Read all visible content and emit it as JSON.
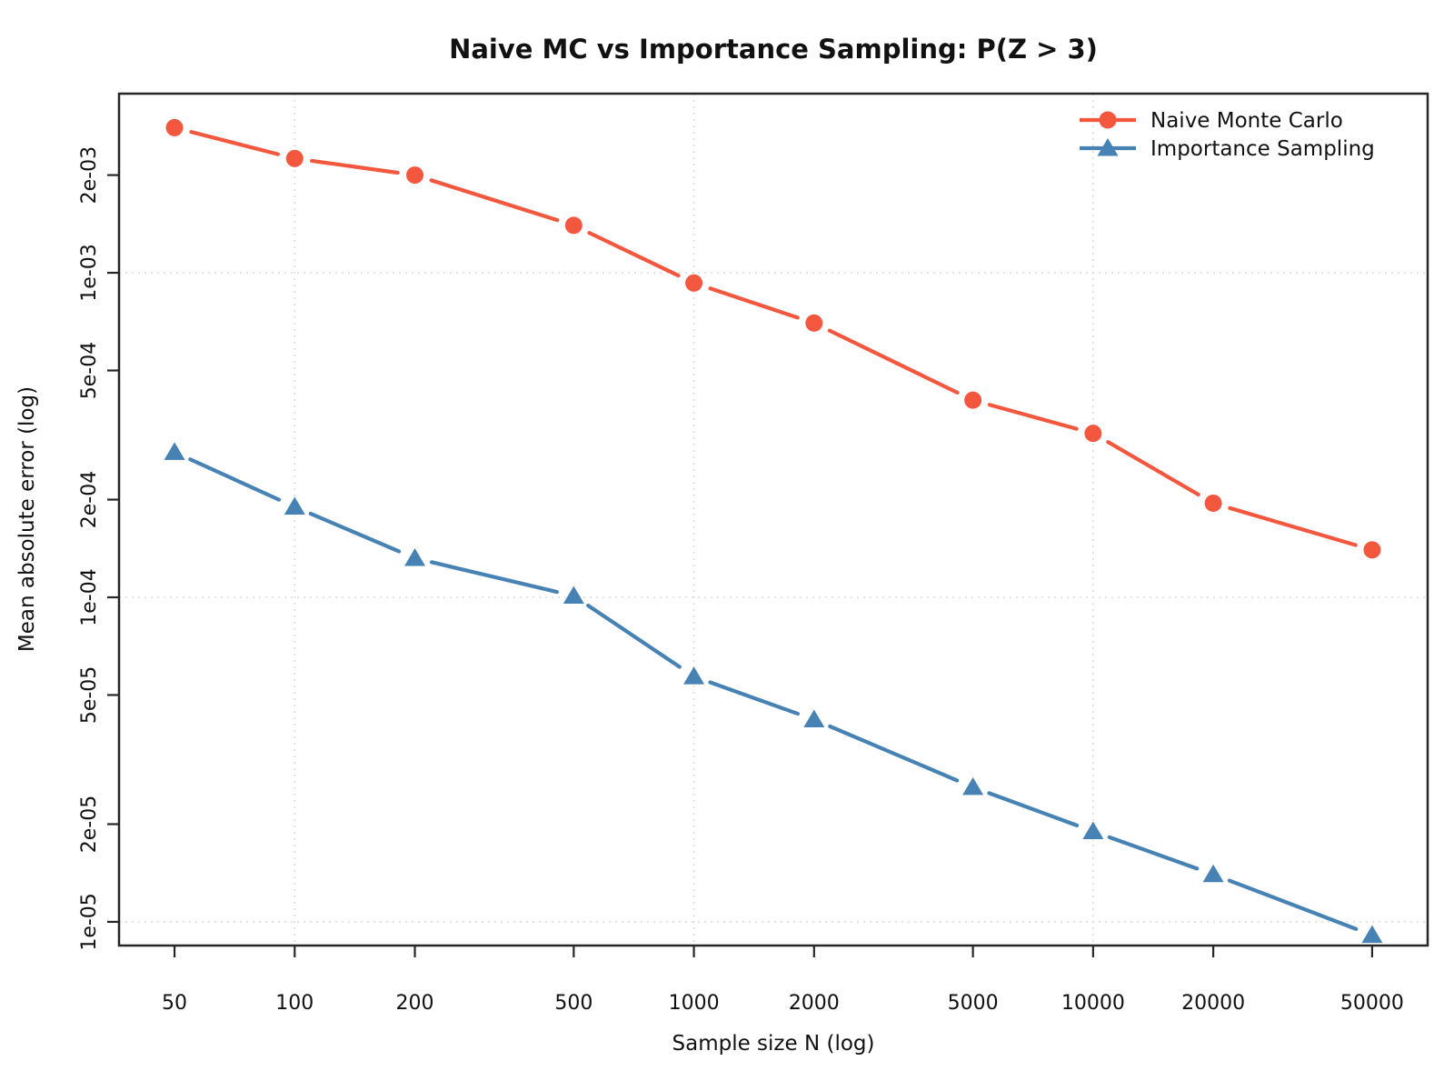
{
  "title": "Naive MC vs Importance Sampling: P(Z > 3)",
  "chart_data": {
    "type": "line",
    "scale": "log-log",
    "title": "Naive MC vs Importance Sampling: P(Z > 3)",
    "xlabel": "Sample size N (log)",
    "ylabel": "Mean absolute error (log)",
    "x": [
      50,
      100,
      200,
      500,
      1000,
      2000,
      5000,
      10000,
      20000,
      50000
    ],
    "series": [
      {
        "name": "Naive Monte Carlo",
        "marker": "circle",
        "color": "#f3573e",
        "values": [
          0.0028,
          0.00225,
          0.002,
          0.0014,
          0.00093,
          0.0007,
          0.000405,
          0.00032,
          0.000195,
          0.00014
        ]
      },
      {
        "name": "Importance Sampling",
        "marker": "triangle",
        "color": "#4682b4",
        "values": [
          0.00028,
          0.00019,
          0.000132,
          0.000101,
          5.7e-05,
          4.2e-05,
          2.6e-05,
          1.9e-05,
          1.4e-05,
          9.1e-06
        ]
      }
    ],
    "x_tick_labels": [
      "50",
      "100",
      "200",
      "500",
      "1000",
      "2000",
      "5000",
      "10000",
      "20000",
      "50000"
    ],
    "x_tick_values": [
      50,
      100,
      200,
      500,
      1000,
      2000,
      5000,
      10000,
      20000,
      50000
    ],
    "y_tick_labels": [
      "2e-03",
      "1e-03",
      "5e-04",
      "2e-04",
      "1e-04",
      "5e-05",
      "2e-05",
      "1e-05"
    ],
    "y_tick_values": [
      0.002,
      0.001,
      0.0005,
      0.0002,
      0.0001,
      5e-05,
      2e-05,
      1e-05
    ],
    "x_gridlines": [
      100,
      1000,
      10000
    ],
    "y_gridlines": [
      0.001,
      0.0001,
      1e-05
    ],
    "x_log_range": [
      1.56,
      4.838
    ],
    "y_log_range": [
      -5.073,
      -2.448
    ],
    "grid": true,
    "legend_position": "top-right",
    "legend_entries": [
      "Naive Monte Carlo",
      "Importance Sampling"
    ]
  },
  "colors": {
    "naive_series": "#f3573e",
    "importance_series": "#4682b4",
    "frame": "#262626",
    "gridline": "#dcdcdc",
    "text": "#111111",
    "background": "#ffffff"
  }
}
